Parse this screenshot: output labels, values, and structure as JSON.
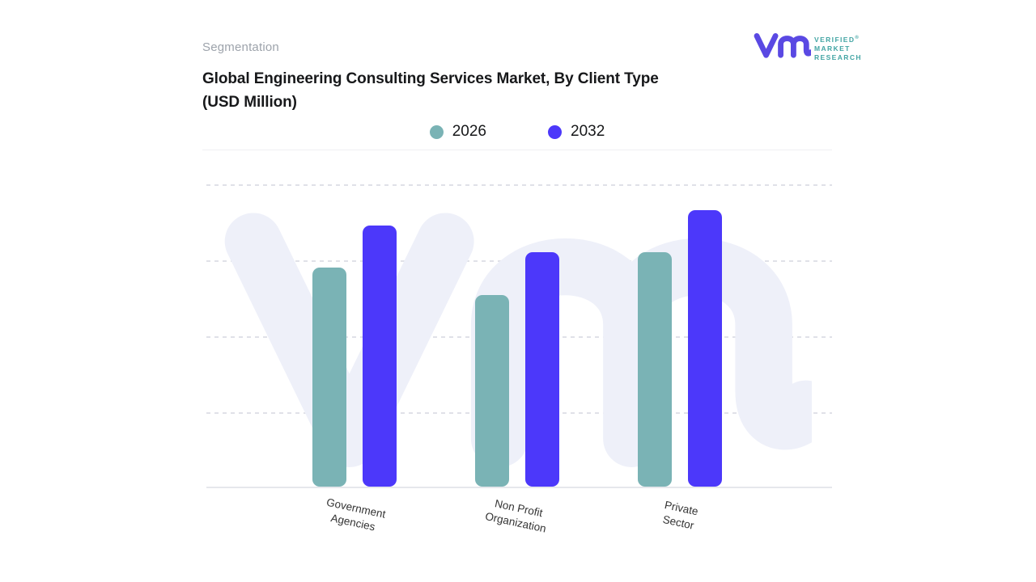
{
  "header": {
    "eyebrow": "Segmentation",
    "title_lines": [
      "Global Engineering Consulting Services Market, By Client Type",
      "(USD Million)"
    ]
  },
  "brand": {
    "name_lines": [
      "VERIFIED",
      "MARKET",
      "RESEARCH"
    ],
    "registered_symbol": "®",
    "monogram_color": "#5a49e3",
    "name_color": "#43a5a4"
  },
  "legend": {
    "items": [
      {
        "label": "2026",
        "color": "#7ab3b5"
      },
      {
        "label": "2032",
        "color": "#4c38fa"
      }
    ]
  },
  "chart_data": {
    "type": "bar",
    "title": "Global Engineering Consulting Services Market, By Client Type (USD Million)",
    "xlabel": "",
    "ylabel": "",
    "categories": [
      "Government Agencies",
      "Non Profit Organization",
      "Private Sector"
    ],
    "category_label_lines": [
      [
        "Government",
        "Agencies"
      ],
      [
        "Non Profit",
        "Organization"
      ],
      [
        "Private",
        "Sector"
      ]
    ],
    "series": [
      {
        "name": "2026",
        "color": "#7ab3b5",
        "values": [
          72,
          63,
          77
        ]
      },
      {
        "name": "2032",
        "color": "#4c38fa",
        "values": [
          86,
          77,
          91
        ]
      }
    ],
    "ylim": [
      0,
      100
    ],
    "y_axis_labels_visible": false,
    "gridlines": "horizontal-dashed",
    "legend_position": "top-center",
    "bar_corner_radius": 9
  }
}
